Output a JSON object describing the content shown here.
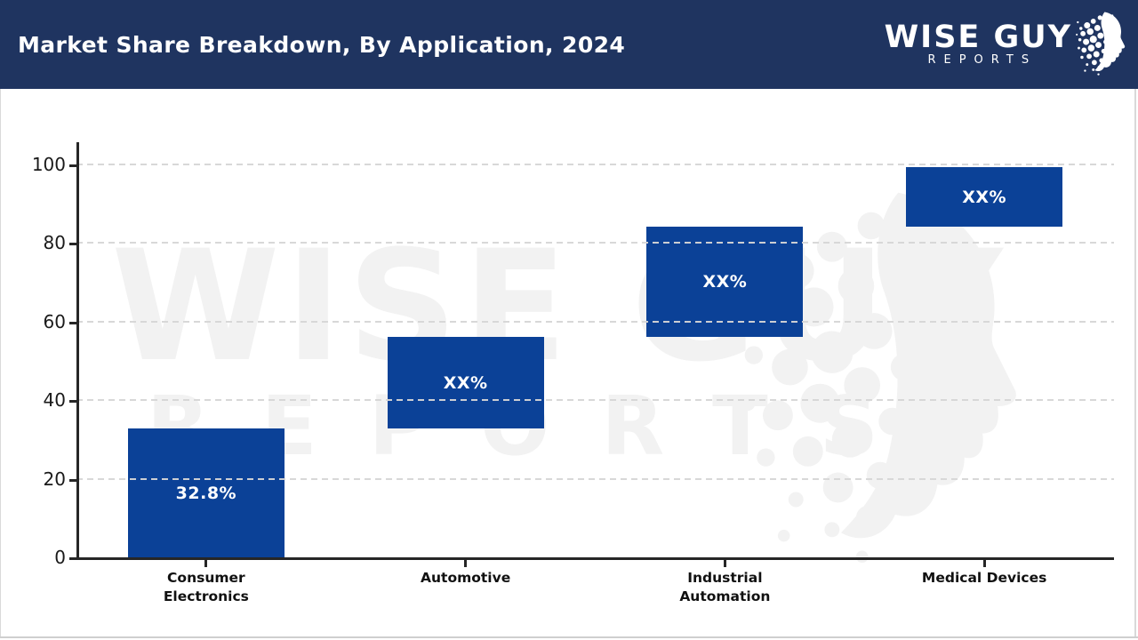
{
  "header": {
    "title": "Market Share Breakdown, By Application, 2024",
    "logo": {
      "line1": "WISE GUY",
      "line2": "REPORTS"
    }
  },
  "watermark": {
    "line1": "WISE GUY",
    "line2": "REPORTS"
  },
  "chart_data": {
    "type": "bar",
    "subtype": "floating-breakdown-waterfall",
    "title": "Market Share Breakdown, By Application, 2024",
    "categories": [
      "Consumer\nElectronics",
      "Automotive",
      "Industrial\nAutomation",
      "Medical Devices"
    ],
    "series": [
      {
        "name": "Consumer Electronics",
        "start": 0,
        "end": 32.8,
        "label": "32.8%"
      },
      {
        "name": "Automotive",
        "start": 32.8,
        "end": 56.0,
        "label": "XX%"
      },
      {
        "name": "Industrial Automation",
        "start": 56.0,
        "end": 84.1,
        "label": "XX%"
      },
      {
        "name": "Medical Devices",
        "start": 84.1,
        "end": 99.3,
        "label": "XX%"
      }
    ],
    "xlabel": "",
    "ylabel": "",
    "ylim": [
      0,
      105
    ],
    "yticks": [
      0,
      20,
      40,
      60,
      80,
      100
    ],
    "grid": "horizontal-dashed",
    "legend": "none",
    "bar_color": "#0b4197",
    "bar_label_color": "#ffffff"
  },
  "colors": {
    "header_bg": "#1f3460",
    "bar": "#0b4197",
    "axis": "#262626",
    "grid": "#d6d6d6",
    "watermark": "#f2f2f2",
    "tick_text": "#1a1a1a"
  }
}
